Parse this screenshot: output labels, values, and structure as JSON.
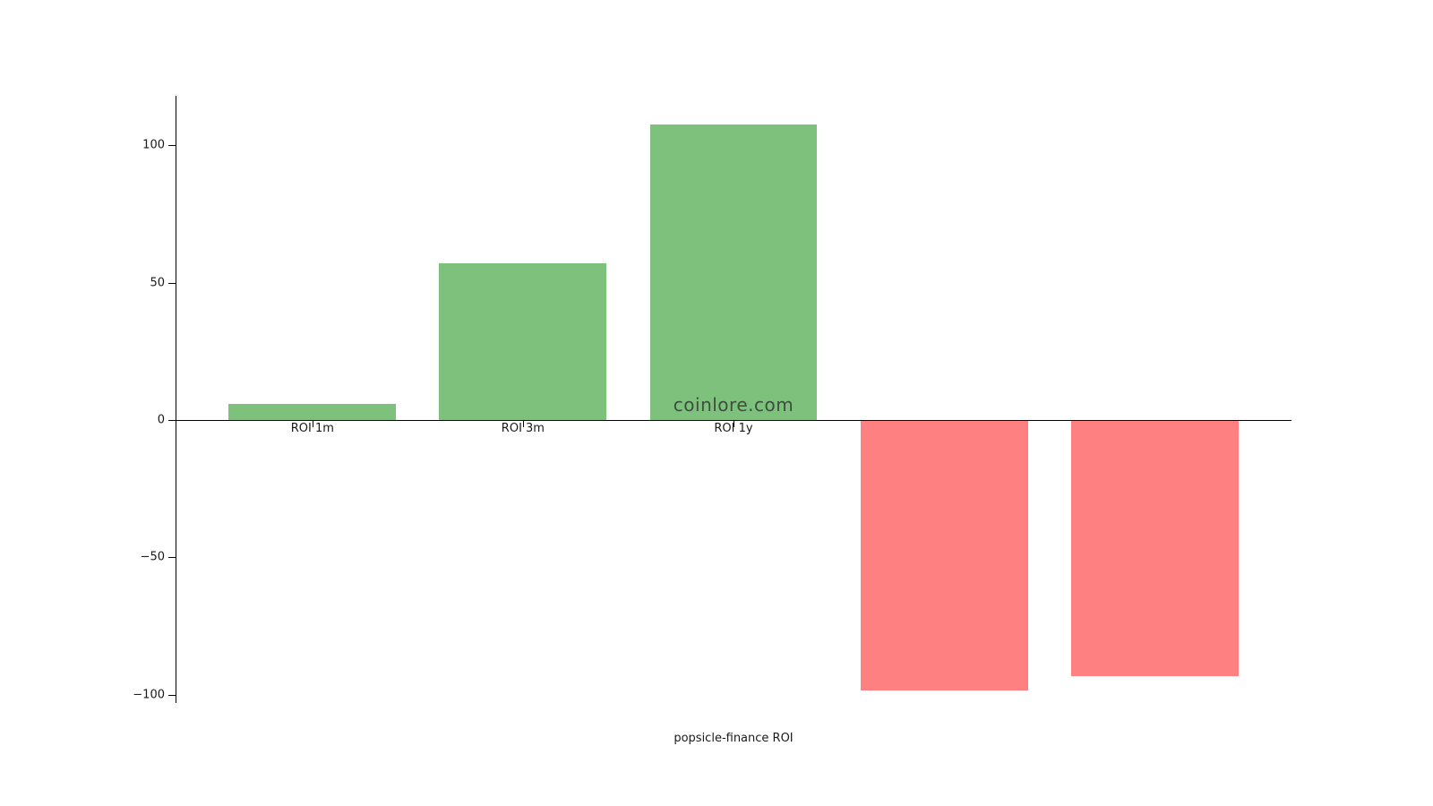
{
  "page": {
    "background": "#ffffff"
  },
  "watermark": {
    "text": "coinlore.com",
    "color": "rgba(34,34,34,0.72)"
  },
  "chart_data": {
    "type": "bar",
    "title": "popsicle-finance ROI",
    "categories": [
      "ROI 1m",
      "ROI 3m",
      "ROI 1y",
      "",
      ""
    ],
    "values": [
      6,
      57,
      107.5,
      -98,
      -93
    ],
    "xlabel": "",
    "ylabel": "",
    "yticks": [
      100,
      50,
      0,
      -50,
      -100
    ],
    "ylim": [
      -103,
      118
    ],
    "xlim": [
      -0.65,
      4.65
    ],
    "bar_width": 0.795,
    "grid": false,
    "legend": "none",
    "colors": {
      "positive": "#7dc17d",
      "negative": "#ff8080",
      "axis": "#000000",
      "text": "#1a1a1a"
    }
  }
}
